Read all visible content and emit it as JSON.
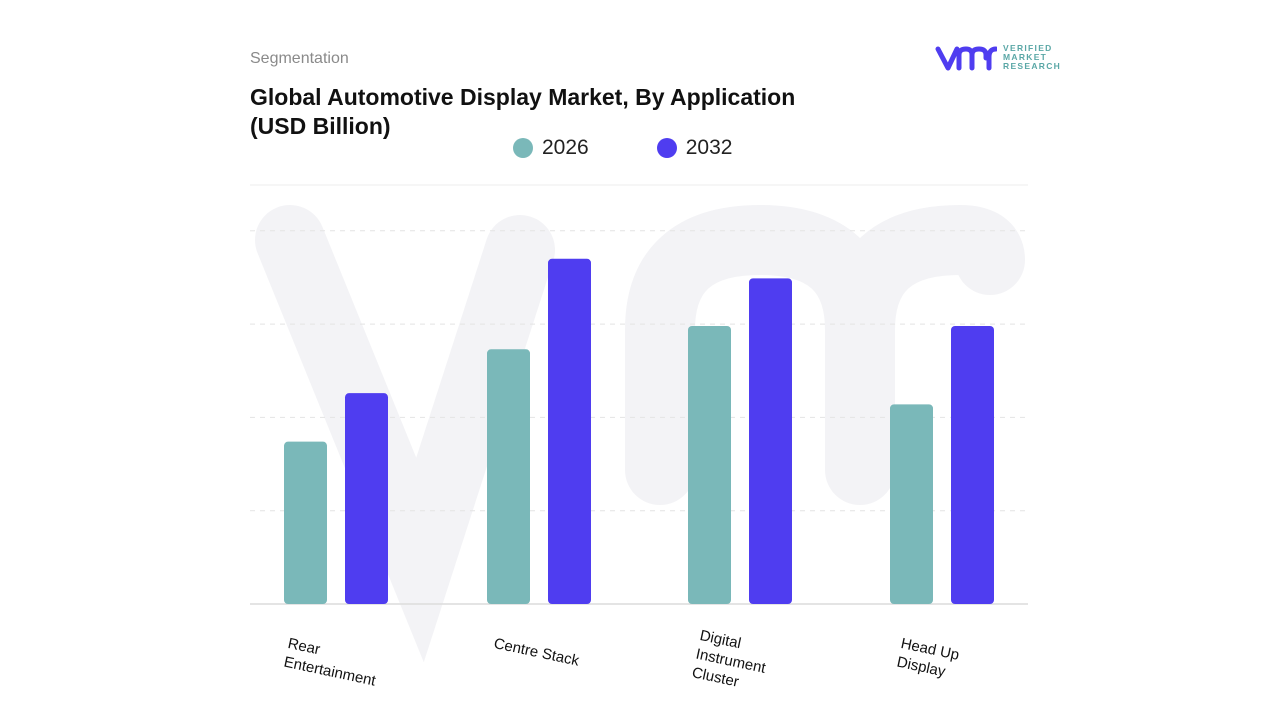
{
  "header": {
    "segment_label": "Segmentation",
    "title": "Global Automotive Display Market, By Application (USD Billion)"
  },
  "logo": {
    "text_lines": [
      "VERIFIED",
      "MARKET",
      "RESEARCH"
    ],
    "brand_color": "#4f3df0",
    "text_color": "#5aa7a6"
  },
  "chart_data": {
    "type": "bar",
    "title": "Global Automotive Display Market, By Application (USD Billion)",
    "categories": [
      "Rear Entertainment",
      "Centre Stack",
      "Digital Instrument Cluster",
      "Head Up Display"
    ],
    "category_labels": [
      "Rear\nEntertainment",
      "Centre Stack",
      "Digital\nInstrument\nCluster",
      "Head Up\nDisplay"
    ],
    "series": [
      {
        "name": "2026",
        "color": "#7ab8b9",
        "values": [
          1.74,
          2.73,
          2.98,
          2.14
        ]
      },
      {
        "name": "2032",
        "color": "#4f3df0",
        "values": [
          2.26,
          3.7,
          3.49,
          2.98
        ]
      }
    ],
    "ylim": [
      0,
      4.5
    ],
    "y_tick_labels": "none",
    "grid": true,
    "legend_placement": "top-center",
    "xlabel": "",
    "ylabel": ""
  }
}
